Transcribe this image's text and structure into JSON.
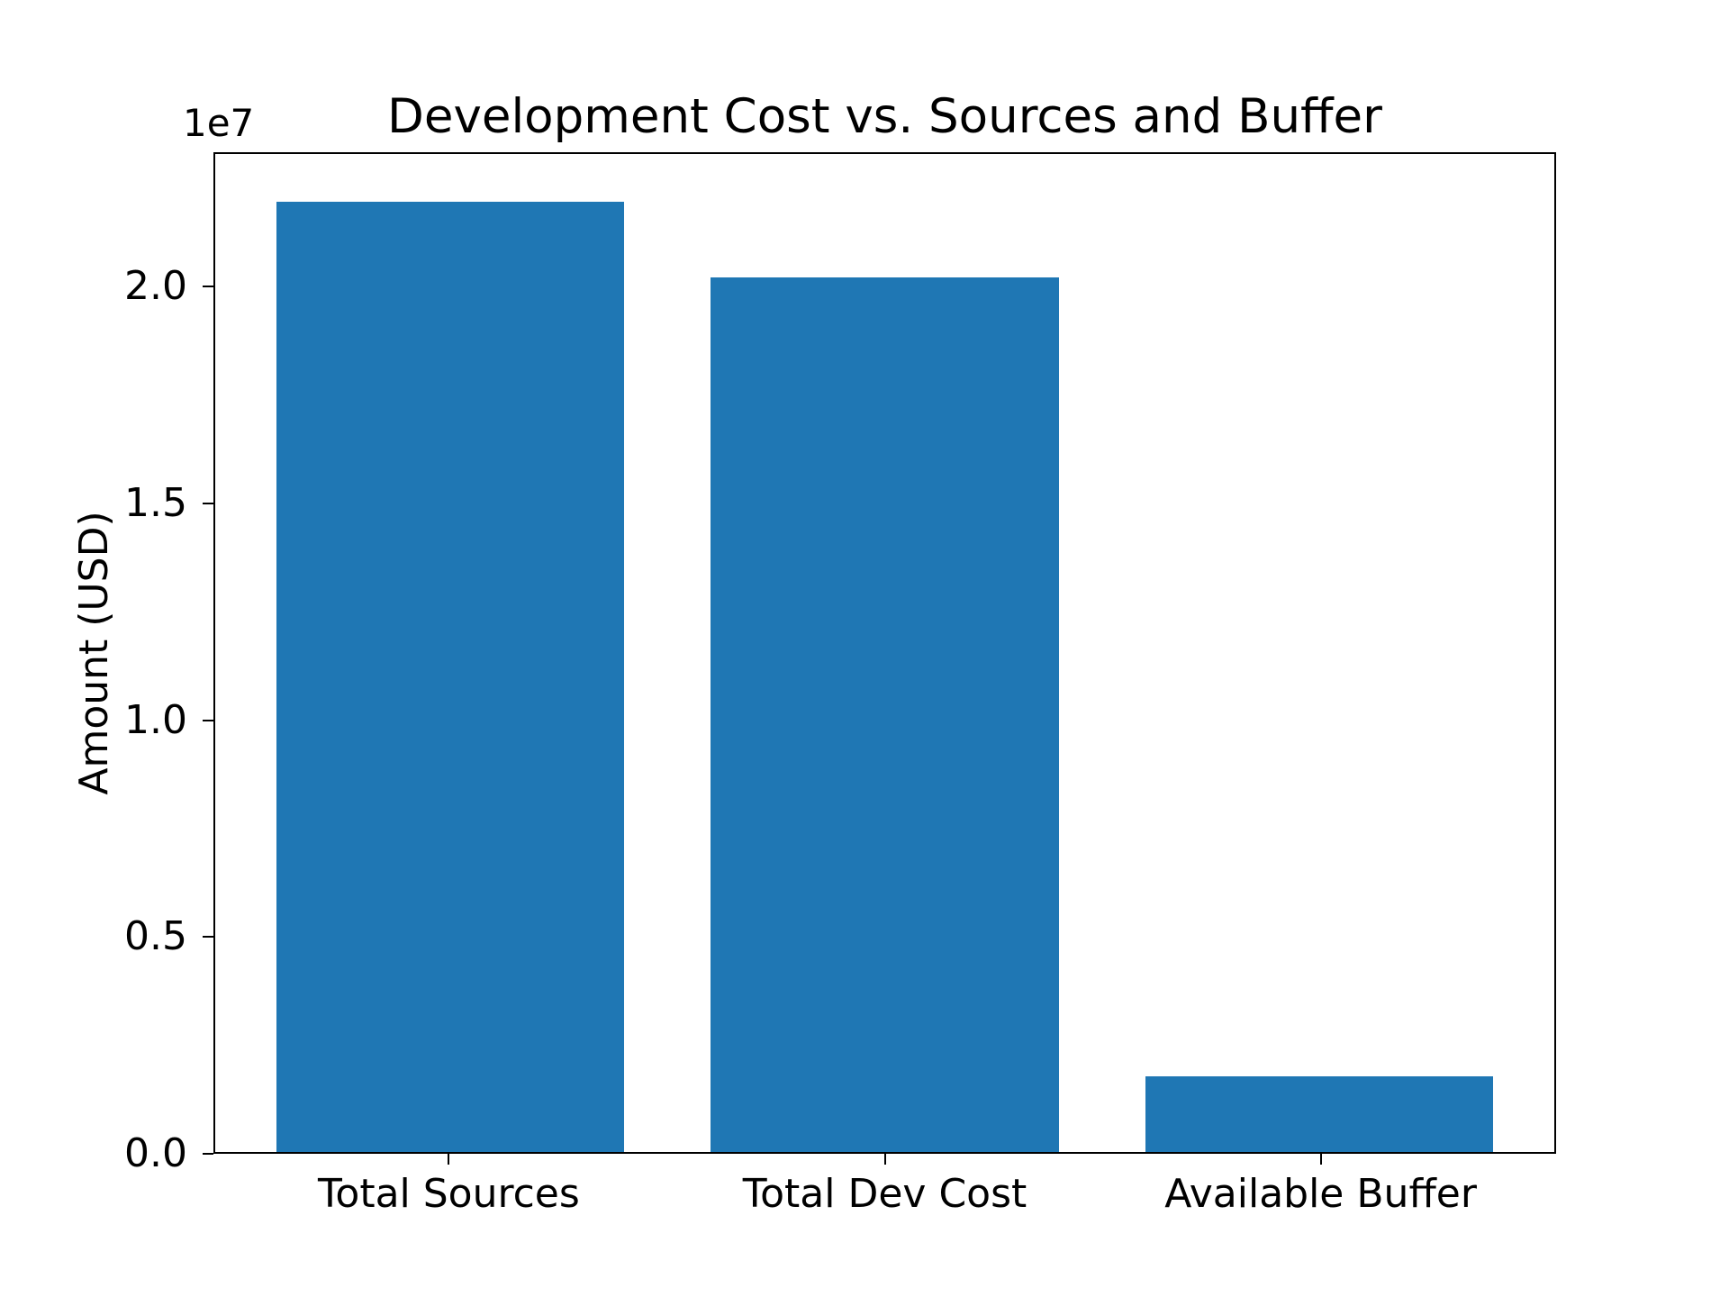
{
  "chart_data": {
    "type": "bar",
    "title": "Development Cost vs. Sources and Buffer",
    "categories": [
      "Total Sources",
      "Total Dev Cost",
      "Available Buffer"
    ],
    "values": [
      22000000,
      20250000,
      1750000
    ],
    "xlabel": "",
    "ylabel": "Amount (USD)",
    "ylim": [
      0,
      23100000
    ],
    "yticks": [
      {
        "value": 0,
        "label": "0.0"
      },
      {
        "value": 5000000,
        "label": "0.5"
      },
      {
        "value": 10000000,
        "label": "1.0"
      },
      {
        "value": 15000000,
        "label": "1.5"
      },
      {
        "value": 20000000,
        "label": "2.0"
      }
    ],
    "y_offset_text": "1e7",
    "bar_color": "#1f77b4",
    "axis_color": "#000000",
    "grid": false,
    "legend_position": "none"
  }
}
